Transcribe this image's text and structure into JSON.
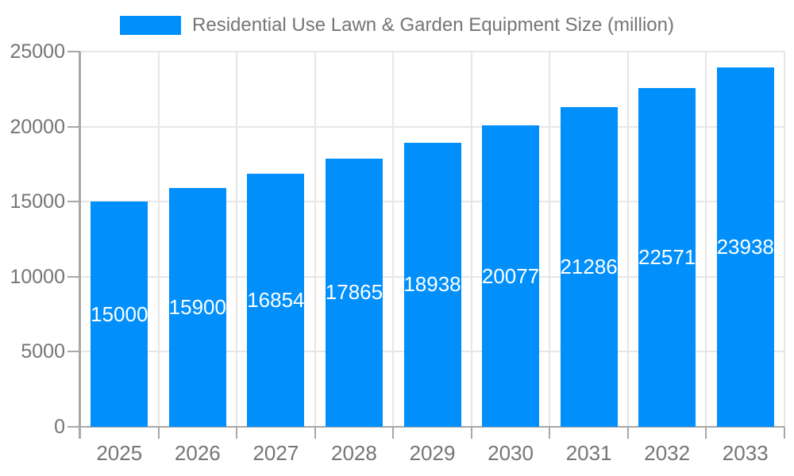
{
  "chart_data": {
    "type": "bar",
    "title": "Residential Use Lawn & Garden Equipment Size (million)",
    "categories": [
      "2025",
      "2026",
      "2027",
      "2028",
      "2029",
      "2030",
      "2031",
      "2032",
      "2033"
    ],
    "values": [
      15000,
      15900,
      16854,
      17865,
      18938,
      20077,
      21286,
      22571,
      23938
    ],
    "series": [
      {
        "name": "Residential Use Lawn & Garden Equipment Size (million)",
        "values": [
          15000,
          15900,
          16854,
          17865,
          18938,
          20077,
          21286,
          22571,
          23938
        ]
      }
    ],
    "xlabel": "",
    "ylabel": "",
    "ylim": [
      0,
      25000
    ],
    "ytick_step": 5000,
    "ytick_labels": [
      "0",
      "5000",
      "10000",
      "15000",
      "20000",
      "25000"
    ],
    "legend_position": "top",
    "grid": "on",
    "value_labels": "inside-center",
    "colors": {
      "bar": "#008FFB",
      "bar_value_text": "#ffffff",
      "grid_line": "#e6e6e6",
      "axis_line": "#a8a8a8",
      "axis_text": "#757575",
      "background": "#ffffff"
    }
  }
}
